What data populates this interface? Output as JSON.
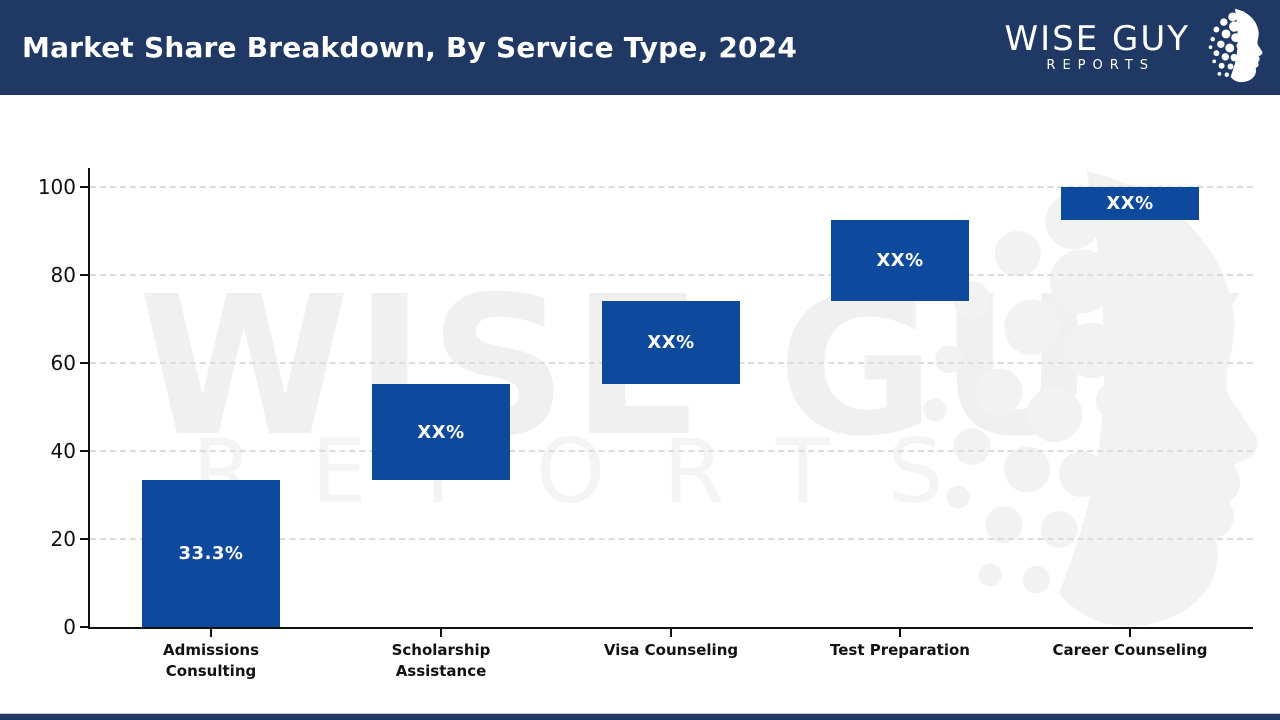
{
  "header": {
    "title": "Market Share Breakdown, By Service Type, 2024",
    "logo": {
      "wordmark": "WISE GUY",
      "subtitle": "REPORTS"
    }
  },
  "watermark": {
    "wordmark": "WISE GUY",
    "subtitle": "REPORTS"
  },
  "colors": {
    "header_bg": "#1f3864",
    "footer_bg": "#1f3864",
    "bar": "#0d4a9e",
    "bar_label_text": "#ffffff",
    "axis": "#111111",
    "grid": "#dcdcdc",
    "tick_text": "#111111",
    "watermark": "#f0f0f0"
  },
  "chart_data": {
    "type": "bar",
    "subtype": "waterfall",
    "title": "Market Share Breakdown, By Service Type, 2024",
    "unit": "%",
    "ylim": [
      0,
      100
    ],
    "yticks": [
      0,
      20,
      40,
      60,
      80,
      100
    ],
    "grid": "horizontal-dashed",
    "legend": "none",
    "categories": [
      "Admissions\nConsulting",
      "Scholarship\nAssistance",
      "Visa Counseling",
      "Test Preparation",
      "Career Counseling"
    ],
    "segments": [
      {
        "category": "Admissions Consulting",
        "start": 0,
        "end": 33.3,
        "value": 33.3,
        "label": "33.3%"
      },
      {
        "category": "Scholarship Assistance",
        "start": 33.3,
        "end": 55.2,
        "value": 21.9,
        "label": "XX%"
      },
      {
        "category": "Visa Counseling",
        "start": 55.2,
        "end": 74.1,
        "value": 18.9,
        "label": "XX%"
      },
      {
        "category": "Test Preparation",
        "start": 74.1,
        "end": 92.5,
        "value": 18.4,
        "label": "XX%"
      },
      {
        "category": "Career Counseling",
        "start": 92.5,
        "end": 100,
        "value": 7.5,
        "label": "XX%"
      }
    ],
    "bar_color": "#0d4a9e"
  }
}
